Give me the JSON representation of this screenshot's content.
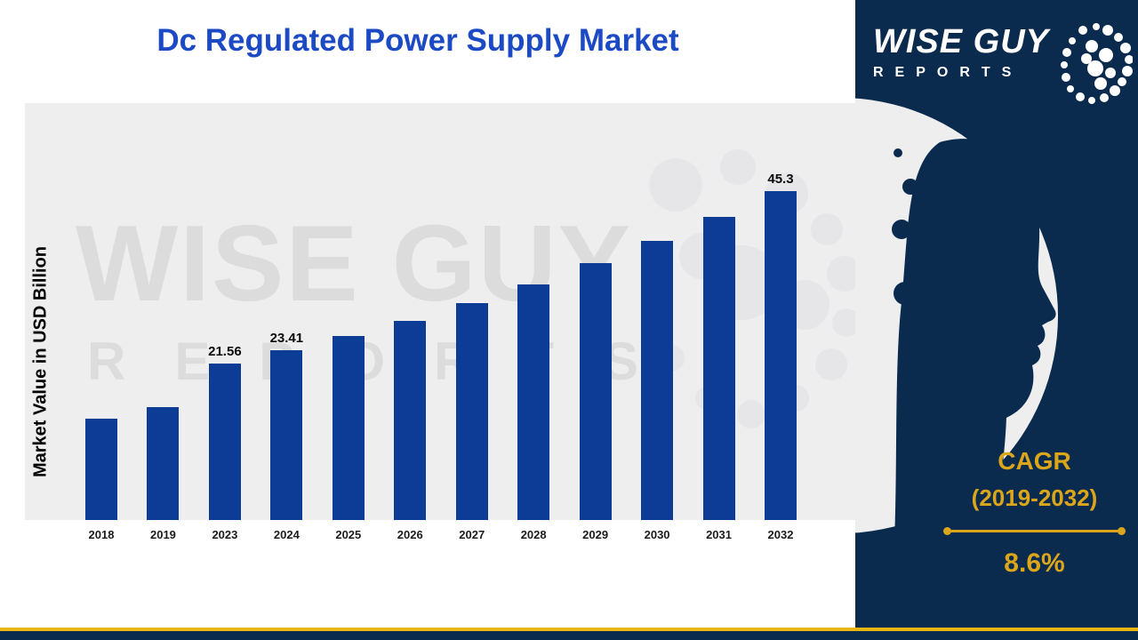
{
  "page": {
    "title": "Dc Regulated Power Supply Market"
  },
  "ylabel": "Market Value in USD Billion",
  "watermark": {
    "line1": "WISE GUY",
    "line2": "REPORTS"
  },
  "logo": {
    "line1": "WISE GUY",
    "line2": "REPORTS"
  },
  "cagr": {
    "label": "CAGR",
    "range": "(2019-2032)",
    "value": "8.6%"
  },
  "colors": {
    "panel_navy": "#0b2b4e",
    "accent_gold": "#dca61a",
    "bottom_gold": "#e9b511",
    "bar_blue": "#0d3c96",
    "title_blue": "#1c49c4",
    "plot_gray": "#eeeeef",
    "watermark_gray": "#dcdcdd"
  },
  "chart_data": {
    "type": "bar",
    "title": "Dc Regulated Power Supply Market",
    "xlabel": "",
    "ylabel": "Market Value in USD Billion",
    "categories": [
      "2018",
      "2019",
      "2023",
      "2024",
      "2025",
      "2026",
      "2027",
      "2028",
      "2029",
      "2030",
      "2031",
      "2032"
    ],
    "values": [
      14.0,
      15.5,
      21.56,
      23.41,
      25.3,
      27.4,
      29.9,
      32.5,
      35.4,
      38.5,
      41.8,
      45.3
    ],
    "data_labels": [
      null,
      null,
      "21.56",
      "23.41",
      null,
      null,
      null,
      null,
      null,
      null,
      null,
      "45.3"
    ],
    "ylim": [
      0,
      48
    ],
    "grid": false,
    "legend": false,
    "bar_color": "#0d3c96",
    "cagr_value": "8.6%",
    "cagr_period": "2019-2032"
  }
}
